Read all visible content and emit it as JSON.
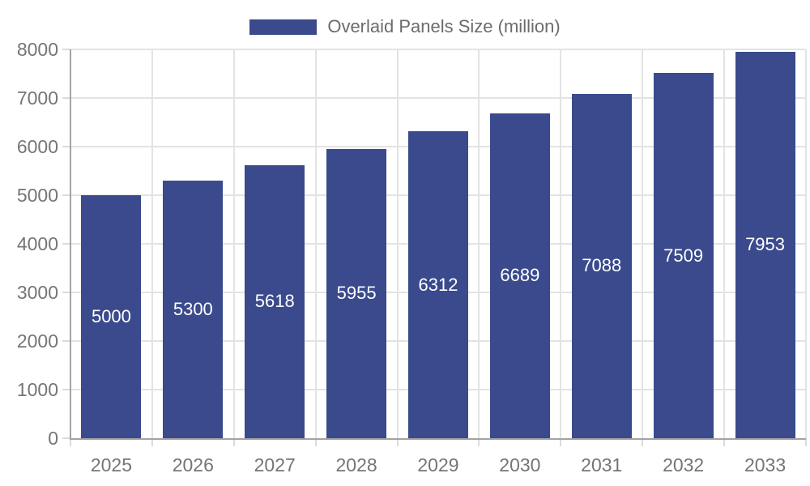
{
  "chart_data": {
    "type": "bar",
    "title": "",
    "legend": "Overlaid Panels Size (million)",
    "legend_position": "top-center",
    "categories": [
      "2025",
      "2026",
      "2027",
      "2028",
      "2029",
      "2030",
      "2031",
      "2032",
      "2033"
    ],
    "values": [
      5000,
      5300,
      5618,
      5955,
      6312,
      6689,
      7088,
      7509,
      7953
    ],
    "xlabel": "",
    "ylabel": "",
    "ylim": [
      0,
      8000
    ],
    "yticks": [
      0,
      1000,
      2000,
      3000,
      4000,
      5000,
      6000,
      7000,
      8000
    ],
    "grid": true,
    "bar_value_labels_inside": true,
    "colors": {
      "bar": "#3A4A8C",
      "bar_label": "#FFFFFF",
      "grid": "#E3E3E3",
      "tick_mark": "#DBDBDB",
      "axis_line": "#A3A3A3",
      "tick_text": "#757575",
      "legend_text": "#6B6B6B",
      "background": "#FFFFFF"
    }
  }
}
